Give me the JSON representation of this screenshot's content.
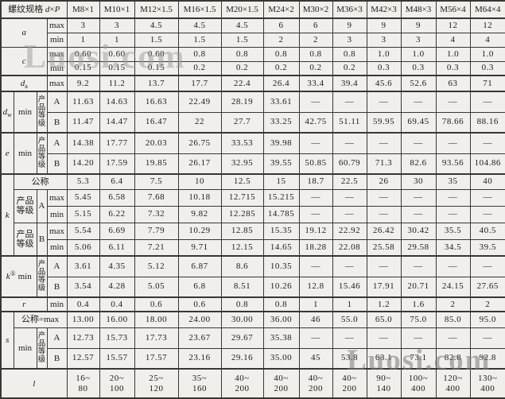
{
  "watermarks": [
    {
      "text": "Luosi.com"
    },
    {
      "text": "Luosi.com"
    }
  ],
  "table": {
    "rows": [
      {
        "h": 22,
        "cls": "head",
        "cells": [
          {
            "t": "螺纹规格 *d*×*P*",
            "cs": 4
          }
        ],
        "vals": [
          "M8×1",
          "M10×1",
          "M12×1.5",
          "M16×1.5",
          "M20×1.5",
          "M24×2",
          "M30×2",
          "M36×3",
          "M42×3",
          "M48×3",
          "M56×4",
          "M64×4"
        ]
      },
      {
        "h": 18,
        "cls": "sep",
        "cells": [
          {
            "t": "*a*",
            "cs": 3,
            "rs": 2
          },
          {
            "t": "max"
          }
        ],
        "vals": [
          "3",
          "3",
          "4.5",
          "4.5",
          "4.5",
          "6",
          "6",
          "9",
          "9",
          "9",
          "12",
          "12"
        ]
      },
      {
        "h": 18,
        "cells": [
          {
            "t": "min"
          }
        ],
        "vals": [
          "1",
          "1",
          "1.5",
          "1.5",
          "1.5",
          "2",
          "2",
          "3",
          "3",
          "3",
          "4",
          "4"
        ]
      },
      {
        "h": 18,
        "cells": [
          {
            "t": "*c*",
            "cs": 3,
            "rs": 2
          },
          {
            "t": "max"
          }
        ],
        "vals": [
          "0.60",
          "0.60",
          "0.60",
          "0.8",
          "0.8",
          "0.8",
          "0.8",
          "0.8",
          "1.0",
          "1.0",
          "1.0",
          "1.0"
        ]
      },
      {
        "h": 18,
        "cells": [
          {
            "t": "min"
          }
        ],
        "vals": [
          "0.15",
          "0.15",
          "0.15",
          "0.2",
          "0.2",
          "0.2",
          "0.2",
          "0.2",
          "0.3",
          "0.3",
          "0.3",
          "0.3"
        ]
      },
      {
        "h": 20,
        "cls": "sep",
        "cells": [
          {
            "t": "*d*_a",
            "cs": 3
          },
          {
            "t": "max"
          }
        ],
        "vals": [
          "9.2",
          "11.2",
          "13.7",
          "17.7",
          "22.4",
          "26.4",
          "33.4",
          "39.4",
          "45.6",
          "52.6",
          "63",
          "71"
        ]
      },
      {
        "h": 26,
        "cls": "sep",
        "cells": [
          {
            "t": "*d*_w",
            "rs": 2
          },
          {
            "t": "min",
            "rs": 2
          },
          {
            "t": "产品等级",
            "rs": 2,
            "v": 1
          },
          {
            "t": "A"
          }
        ],
        "vals": [
          "11.63",
          "14.63",
          "16.63",
          "22.49",
          "28.19",
          "33.61",
          "—",
          "—",
          "—",
          "—",
          "—",
          "—"
        ]
      },
      {
        "h": 26,
        "cells": [
          {
            "t": "B"
          }
        ],
        "vals": [
          "11.47",
          "14.47",
          "16.47",
          "22",
          "27.7",
          "33.25",
          "42.75",
          "51.11",
          "59.95",
          "69.45",
          "78.66",
          "88.16"
        ]
      },
      {
        "h": 26,
        "cls": "sep",
        "cells": [
          {
            "t": "*e*",
            "rs": 2
          },
          {
            "t": "min",
            "rs": 2
          },
          {
            "t": "产品等级",
            "rs": 2,
            "v": 1
          },
          {
            "t": "A"
          }
        ],
        "vals": [
          "14.38",
          "17.77",
          "20.03",
          "26.75",
          "33.53",
          "39.98",
          "—",
          "—",
          "—",
          "—",
          "—",
          "—"
        ]
      },
      {
        "h": 26,
        "cells": [
          {
            "t": "B"
          }
        ],
        "vals": [
          "14.20",
          "17.59",
          "19.85",
          "26.17",
          "32.95",
          "39.55",
          "50.85",
          "60.79",
          "71.3",
          "82.6",
          "93.56",
          "104.86"
        ]
      },
      {
        "h": 19,
        "cls": "sep",
        "cells": [
          {
            "t": "*k*",
            "rs": 5
          },
          {
            "t": "公称",
            "cs": 3
          }
        ],
        "vals": [
          "5.3",
          "6.4",
          "7.5",
          "10",
          "12.5",
          "15",
          "18.7",
          "22.5",
          "26",
          "30",
          "35",
          "40"
        ]
      },
      {
        "h": 21,
        "cells": [
          {
            "t": "产品等级",
            "rs": 2
          },
          {
            "t": "A",
            "rs": 2
          },
          {
            "t": "max"
          }
        ],
        "vals": [
          "5.45",
          "6.58",
          "7.68",
          "10.18",
          "12.715",
          "15.215",
          "—",
          "—",
          "—",
          "—",
          "—",
          "—"
        ]
      },
      {
        "h": 21,
        "cells": [
          {
            "t": "min"
          }
        ],
        "vals": [
          "5.15",
          "6.22",
          "7.32",
          "9.82",
          "12.285",
          "14.785",
          "—",
          "—",
          "—",
          "—",
          "—",
          "—"
        ]
      },
      {
        "h": 21,
        "cells": [
          {
            "t": "产品等级",
            "rs": 2
          },
          {
            "t": "B",
            "rs": 2
          },
          {
            "t": "max"
          }
        ],
        "vals": [
          "5.54",
          "6.69",
          "7.79",
          "10.29",
          "12.85",
          "15.35",
          "19.12",
          "22.92",
          "26.42",
          "30.42",
          "35.5",
          "40.5"
        ]
      },
      {
        "h": 21,
        "cells": [
          {
            "t": "min"
          }
        ],
        "vals": [
          "5.06",
          "6.11",
          "7.21",
          "9.71",
          "12.15",
          "14.65",
          "18.28",
          "22.08",
          "25.58",
          "29.58",
          "34.5",
          "39.5"
        ]
      },
      {
        "h": 26,
        "cls": "sep",
        "cells": [
          {
            "t": "*k*^① min",
            "cs": 2,
            "rs": 2
          },
          {
            "t": "产品等级",
            "rs": 2,
            "v": 1
          },
          {
            "t": "A"
          }
        ],
        "vals": [
          "3.61",
          "4.35",
          "5.12",
          "6.87",
          "8.6",
          "10.35",
          "—",
          "—",
          "—",
          "—",
          "—",
          "—"
        ]
      },
      {
        "h": 26,
        "cells": [
          {
            "t": "B"
          }
        ],
        "vals": [
          "3.54",
          "4.28",
          "5.05",
          "6.8",
          "8.51",
          "10.26",
          "12.8",
          "15.46",
          "17.91",
          "20.71",
          "24.15",
          "27.65"
        ]
      },
      {
        "h": 18,
        "cls": "sep",
        "cells": [
          {
            "t": "*r*",
            "cs": 3
          },
          {
            "t": "min"
          }
        ],
        "vals": [
          "0.4",
          "0.4",
          "0.6",
          "0.6",
          "0.8",
          "0.8",
          "1",
          "1",
          "1.2",
          "1.6",
          "2",
          "2"
        ]
      },
      {
        "h": 20,
        "cls": "sep",
        "cells": [
          {
            "t": "*s*",
            "rs": 3
          },
          {
            "t": "公称=max",
            "cs": 3
          }
        ],
        "vals": [
          "13.00",
          "16.00",
          "18.00",
          "24.00",
          "30.00",
          "36.00",
          "46",
          "55.0",
          "65.0",
          "75.0",
          "85.0",
          "95.0"
        ]
      },
      {
        "h": 26,
        "cells": [
          {
            "t": "min",
            "rs": 2
          },
          {
            "t": "产品等级",
            "rs": 2,
            "v": 1
          },
          {
            "t": "A"
          }
        ],
        "vals": [
          "12.73",
          "15.73",
          "17.73",
          "23.67",
          "29.67",
          "35.38",
          "—",
          "—",
          "—",
          "—",
          "—",
          "—"
        ]
      },
      {
        "h": 26,
        "cells": [
          {
            "t": "B"
          }
        ],
        "vals": [
          "12.57",
          "15.57",
          "17.57",
          "23.16",
          "29.16",
          "35.00",
          "45",
          "53.8",
          "63.1",
          "73.1",
          "82.8",
          "92.8"
        ]
      },
      {
        "h": 37,
        "cls": "sep",
        "cells": [
          {
            "t": "*l*",
            "cs": 4
          }
        ],
        "vals": [
          "16~\n80",
          "20~\n100",
          "25~\n120",
          "35~\n160",
          "40~\n200",
          "40~\n200",
          "40~\n200",
          "40~\n200",
          "90~\n140",
          "100~\n400",
          "120~\n400",
          "130~\n400"
        ]
      }
    ]
  }
}
